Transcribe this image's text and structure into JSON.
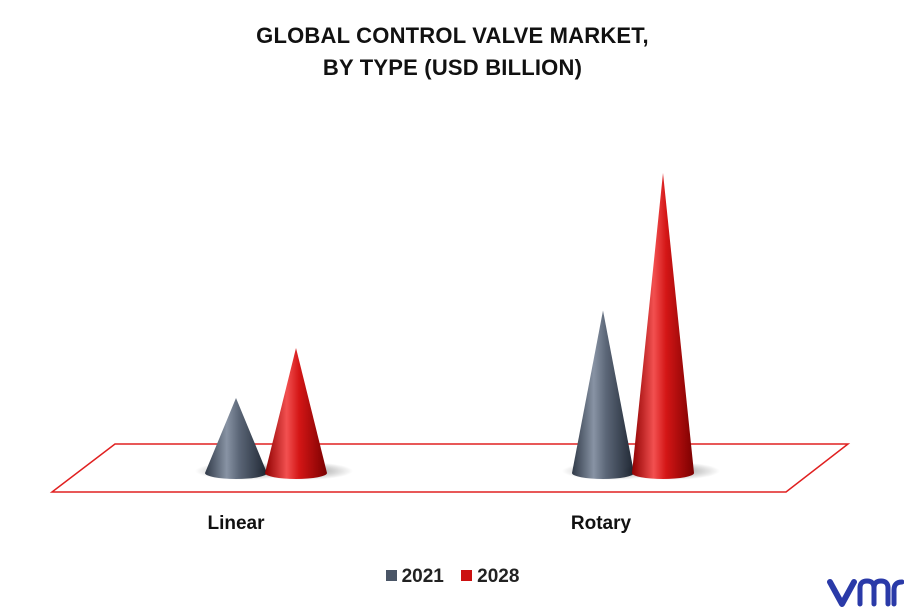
{
  "chart_data": {
    "type": "bar",
    "title": [
      "GLOBAL CONTROL VALVE MARKET,",
      "BY TYPE (USD BILLION)"
    ],
    "categories": [
      "Linear",
      "Rotary"
    ],
    "series": [
      {
        "name": "2021",
        "values": [
          3.0,
          6.5
        ],
        "color": "#4a5566"
      },
      {
        "name": "2028",
        "values": [
          5.0,
          12.0
        ],
        "color": "#cc1111"
      }
    ],
    "mark_shape": "cone",
    "floor_outline_color": "#e02020",
    "legend_position": "bottom",
    "grid": false
  },
  "brand": {
    "logo_name": "vmr-logo",
    "logo_color": "#2a3aa8"
  }
}
